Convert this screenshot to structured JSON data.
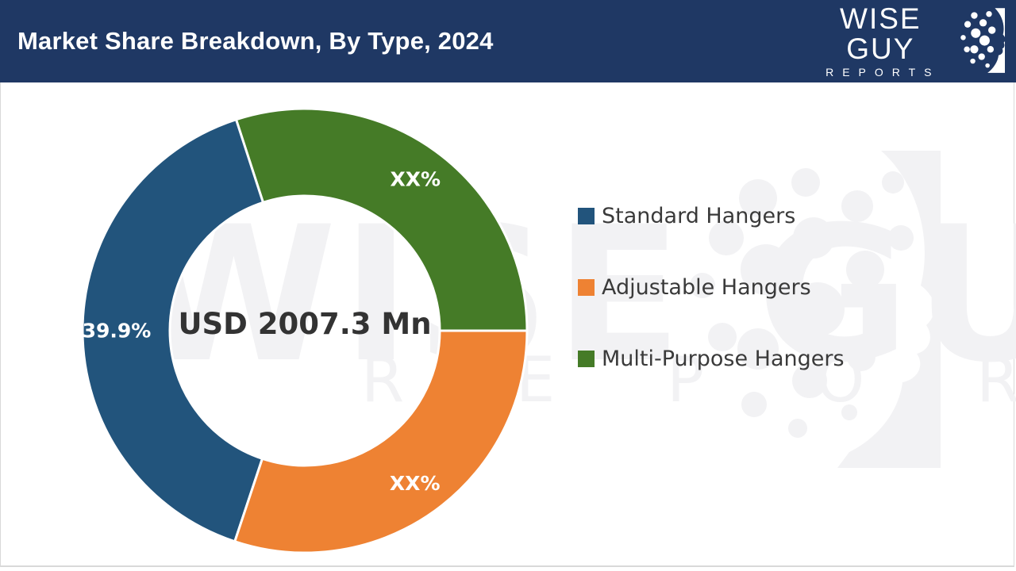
{
  "header": {
    "title": "Market Share Breakdown, By Type, 2024",
    "background_color": "#1f3864",
    "logo": {
      "line1": "WISE GUY",
      "line2": "REPORTS"
    }
  },
  "watermark": {
    "line1": "WISE GUY",
    "line2": "R E P O R T S"
  },
  "legend": {
    "items": [
      {
        "label": "Standard Hangers",
        "color": "#22547c"
      },
      {
        "label": "Adjustable Hangers",
        "color": "#ee8233"
      },
      {
        "label": "Multi-Purpose Hangers",
        "color": "#457b27"
      }
    ]
  },
  "chart_data": {
    "type": "pie",
    "donut": true,
    "title": "Market Share Breakdown, By Type, 2024",
    "center_label": "USD 2007.3 Mn",
    "categories": [
      "Standard Hangers",
      "Adjustable Hangers",
      "Multi-Purpose Hangers"
    ],
    "slices": [
      {
        "id": "standard-hangers",
        "label": "Standard Hangers",
        "value_pct": 39.9,
        "display_label": "39.9%",
        "color": "#22547c",
        "value_masked": false
      },
      {
        "id": "adjustable-hangers",
        "label": "Adjustable Hangers",
        "value_pct": 30.1,
        "display_label": "XX%",
        "color": "#ee8233",
        "value_masked": true
      },
      {
        "id": "multi-purpose-hangers",
        "label": "Multi-Purpose Hangers",
        "value_pct": 30.0,
        "display_label": "XX%",
        "color": "#457b27",
        "value_masked": true
      }
    ],
    "masked_values_estimated_from_arcs": true,
    "plot_order": [
      2,
      0,
      1
    ],
    "start_angle_deg": 0,
    "direction": "counterclockwise",
    "slice_edge_color": "#ffffff",
    "legend_position": "right",
    "geometry": {
      "center": [
        384,
        417
      ],
      "outer_radius": 280,
      "inner_radius": 170,
      "label_radius": 237
    }
  }
}
